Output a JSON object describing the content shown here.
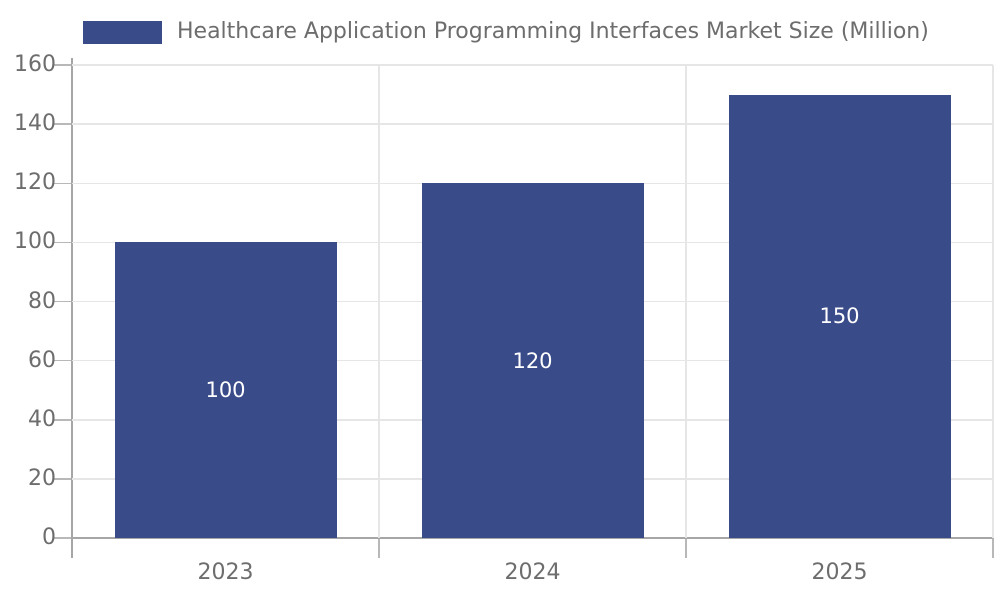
{
  "chart_data": {
    "type": "bar",
    "title": "",
    "legend": {
      "label": "Healthcare Application Programming Interfaces Market Size (Million)",
      "position": "top-left"
    },
    "categories": [
      "2023",
      "2024",
      "2025"
    ],
    "values": [
      100,
      120,
      150
    ],
    "bar_labels": [
      "100",
      "120",
      "150"
    ],
    "xlabel": "",
    "ylabel": "",
    "ylim": [
      0,
      160
    ],
    "yticks": [
      0,
      20,
      40,
      60,
      80,
      100,
      120,
      140,
      160
    ],
    "grid": "both",
    "bar_label_position": "center-inside",
    "colors": {
      "bar": "#3A4B8A",
      "grid": "#e6e6e6",
      "axis": "#a6a6a6",
      "tick": "#b8b8b8",
      "tick_label": "#6d6d6d",
      "legend_text": "#6d6d6d",
      "bar_label": "#ffffff",
      "background": "#ffffff"
    }
  }
}
